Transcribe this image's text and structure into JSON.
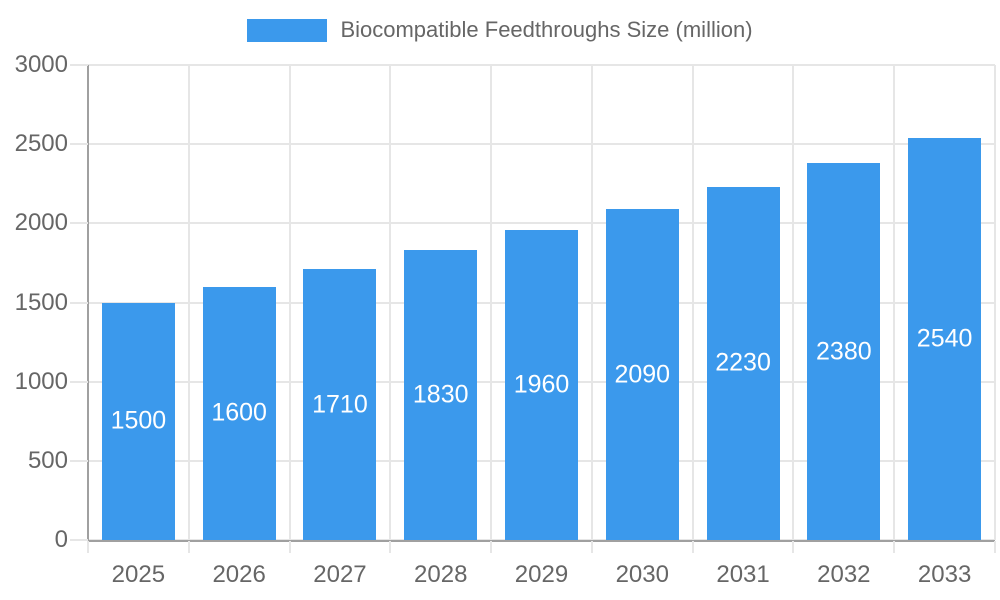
{
  "legend": {
    "label": "Biocompatible Feedthroughs Size (million)"
  },
  "chart_data": {
    "type": "bar",
    "title": "Biocompatible Feedthroughs Size (million)",
    "series_name": "Biocompatible Feedthroughs Size (million)",
    "categories": [
      "2025",
      "2026",
      "2027",
      "2028",
      "2029",
      "2030",
      "2031",
      "2032",
      "2033"
    ],
    "values": [
      1500,
      1600,
      1710,
      1830,
      1960,
      2090,
      2230,
      2380,
      2540
    ],
    "value_labels": [
      "1500",
      "1600",
      "1710",
      "1830",
      "1960",
      "2090",
      "2230",
      "2380",
      "2540"
    ],
    "xlabel": "",
    "ylabel": "",
    "ylim": [
      0,
      3000
    ],
    "yticks": [
      0,
      500,
      1000,
      1500,
      2000,
      2500,
      3000
    ],
    "grid": true,
    "legend_position": "top-center",
    "bar_color": "#3b99ec",
    "value_label_color": "#ffffff",
    "grid_color": "#e6e6e6",
    "axis_color": "#a0a0a0",
    "tick_label_color": "#666666",
    "legend_label_color": "#666666",
    "background_color": "#ffffff"
  }
}
